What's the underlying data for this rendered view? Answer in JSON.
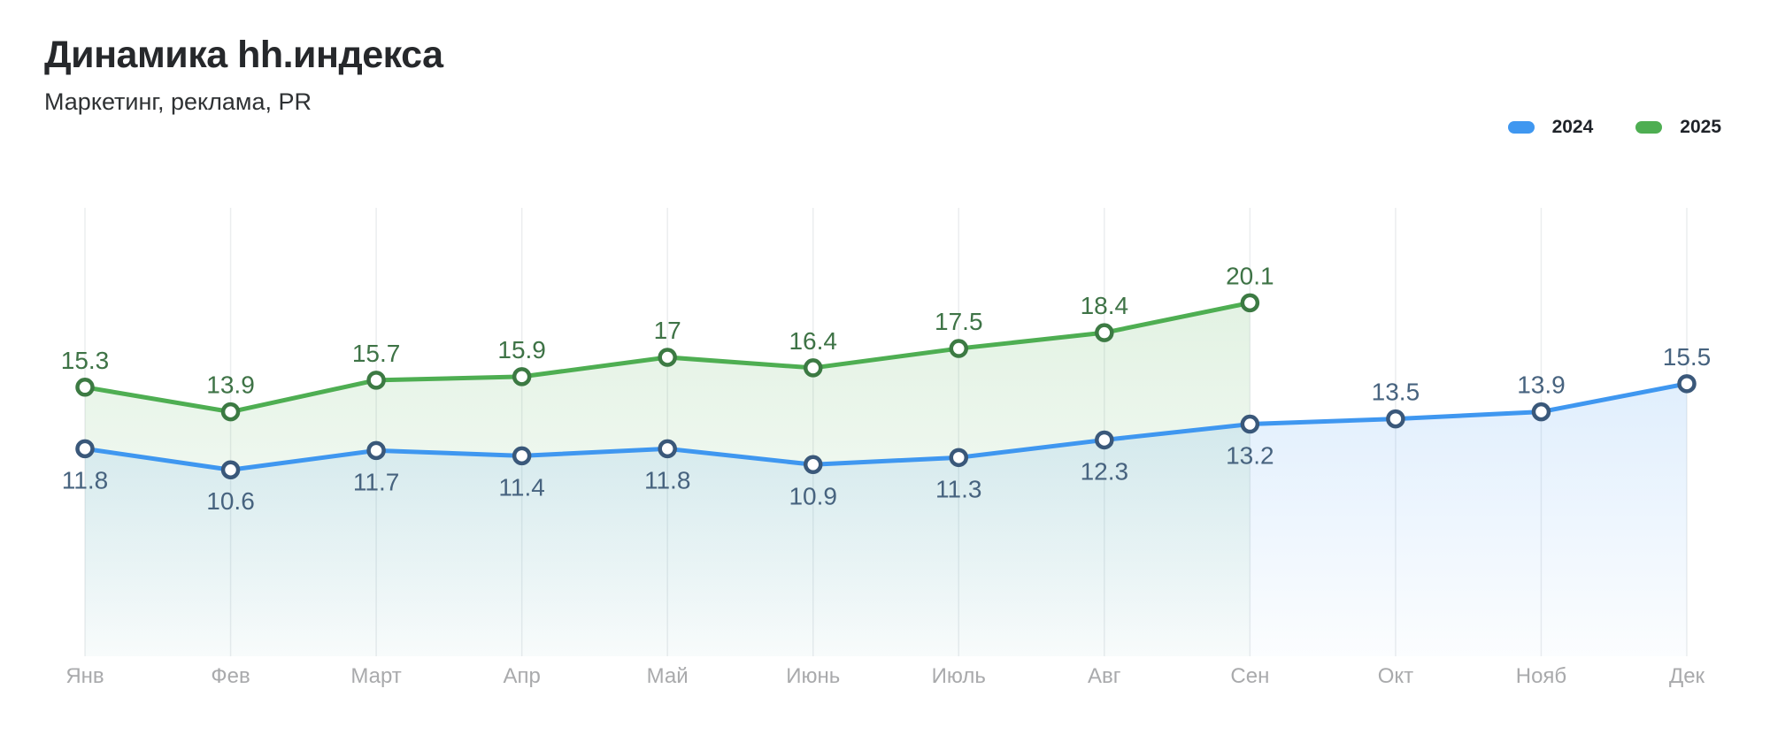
{
  "header": {
    "title": "Динамика hh.индекса",
    "subtitle": "Маркетинг, реклама, PR"
  },
  "legend": [
    {
      "label": "2024",
      "color": "#3f97f0"
    },
    {
      "label": "2025",
      "color": "#4eae52"
    }
  ],
  "chart_data": {
    "type": "line",
    "title": "Динамика hh.индекса",
    "subtitle": "Маркетинг, реклама, PR",
    "xlabel": "",
    "ylabel": "",
    "categories": [
      "Янв",
      "Фев",
      "Март",
      "Апр",
      "Май",
      "Июнь",
      "Июль",
      "Авг",
      "Сен",
      "Окт",
      "Нояб",
      "Дек"
    ],
    "series": [
      {
        "name": "2024",
        "color": "#3f97f0",
        "marker_stroke": "#3a587a",
        "label_color": "#47637f",
        "values": [
          11.8,
          10.6,
          11.7,
          11.4,
          11.8,
          10.9,
          11.3,
          12.3,
          13.2,
          13.5,
          13.9,
          15.5
        ],
        "label_positions": [
          "below",
          "below",
          "below",
          "below",
          "below",
          "below",
          "below",
          "below",
          "below",
          "above",
          "above",
          "above"
        ]
      },
      {
        "name": "2025",
        "color": "#4eae52",
        "marker_stroke": "#3c7a43",
        "label_color": "#3e7346",
        "values": [
          15.3,
          13.9,
          15.7,
          15.9,
          17,
          16.4,
          17.5,
          18.4,
          20.1
        ],
        "label_positions": [
          "above",
          "above",
          "above",
          "above",
          "above",
          "above",
          "above",
          "above",
          "above"
        ]
      }
    ],
    "ylim": [
      0,
      25.5
    ],
    "grid": "vertical-only",
    "gridline_color": "#ebedef",
    "axis_label_color": "#a9aaac",
    "legend_position": "top-right",
    "marker_style": "hollow-circle",
    "area_fill": "gradient-to-transparent"
  }
}
